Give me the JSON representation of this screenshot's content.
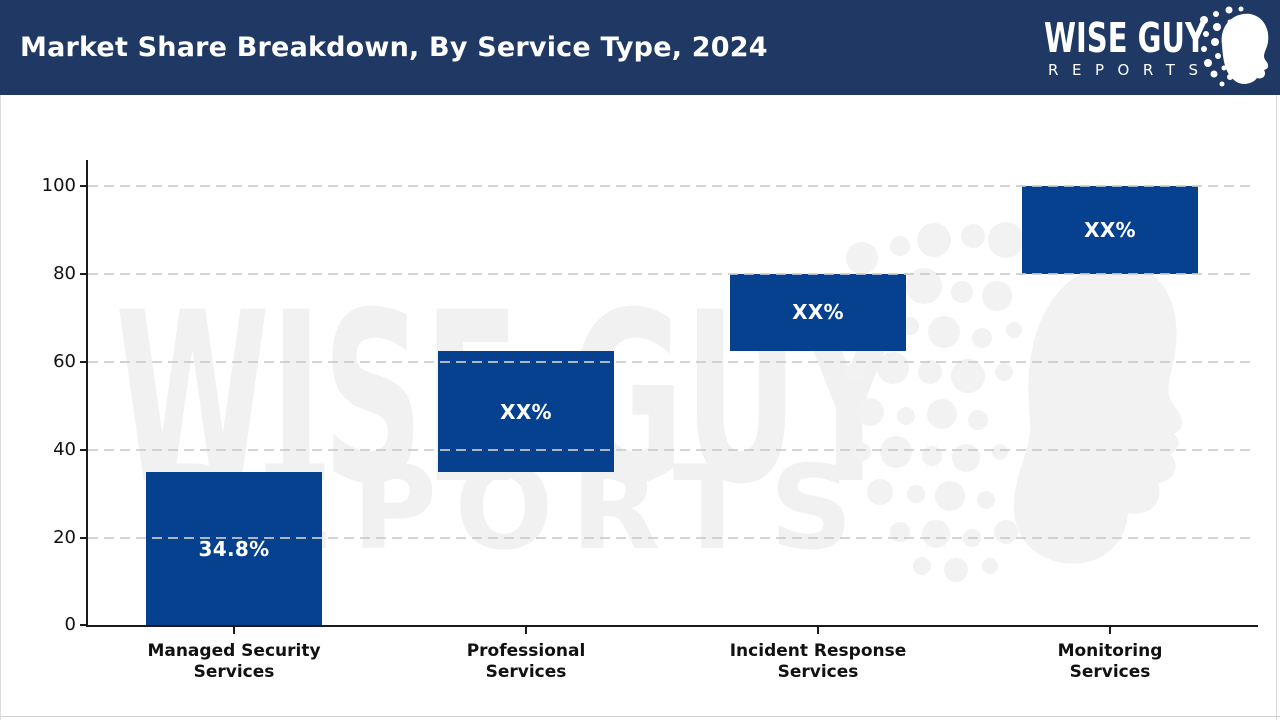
{
  "header": {
    "title": "Market Share Breakdown, By Service Type, 2024",
    "logo": {
      "brand": "WISE GUY",
      "sub": "REPORTS"
    }
  },
  "watermark": {
    "brand": "WISE GUY",
    "sub": "REPORTS"
  },
  "colors": {
    "header_bg": "#1f3864",
    "bar": "#05418f",
    "axis": "#1a1a1a",
    "gridline": "#d2d2d2",
    "bar_label_text": "#ffffff",
    "title_text": "#ffffff",
    "watermark": "#f1f1f1"
  },
  "chart_data": {
    "type": "bar",
    "variant": "stacked-waterfall",
    "title": "Market Share Breakdown, By Service Type, 2024",
    "categories": [
      "Managed Security\nServices",
      "Professional\nServices",
      "Incident Response\nServices",
      "Monitoring\nServices"
    ],
    "bars": [
      {
        "category": "Managed Security Services",
        "label": "34.8%",
        "value": 34.8,
        "start": 0,
        "end": 34.8
      },
      {
        "category": "Professional Services",
        "label": "XX%",
        "value": 27.7,
        "start": 34.8,
        "end": 62.5
      },
      {
        "category": "Incident Response Services",
        "label": "XX%",
        "value": 17.5,
        "start": 62.5,
        "end": 80
      },
      {
        "category": "Monitoring Services",
        "label": "XX%",
        "value": 20,
        "start": 80,
        "end": 100
      }
    ],
    "ylim": [
      0,
      100
    ],
    "yticks": [
      0,
      20,
      40,
      60,
      80,
      100
    ],
    "grid": "horizontal-dashed",
    "legend_position": "none"
  }
}
